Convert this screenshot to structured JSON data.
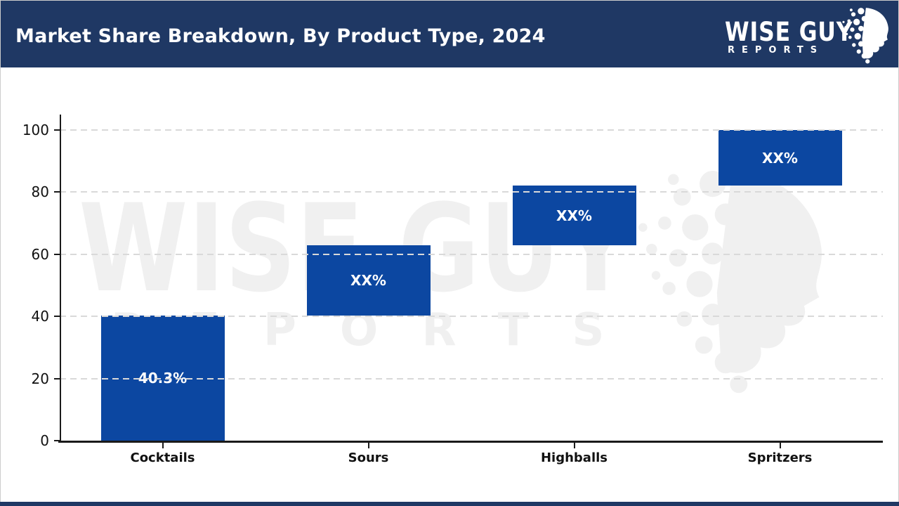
{
  "header": {
    "title": "Market Share Breakdown, By Product Type, 2024",
    "logo": {
      "line1": "WISE GUY",
      "line2": "REPORTS"
    }
  },
  "watermark": {
    "line1": "WISE GUY",
    "line2": "REPORTS"
  },
  "colors": {
    "header_bg": "#1f3864",
    "bar": "#0c47a1",
    "bar_label": "#ffffff",
    "gridline": "#d9d9d9",
    "axis": "#1a1a1a",
    "watermark": "#f0f0f0"
  },
  "chart_data": {
    "type": "bar",
    "subtype": "waterfall",
    "title": "Market Share Breakdown, By Product Type, 2024",
    "xlabel": "",
    "ylabel": "",
    "categories": [
      "Cocktails",
      "Sours",
      "Highballs",
      "Spritzers"
    ],
    "segments": [
      {
        "category": "Cocktails",
        "from": 0,
        "to": 40.3,
        "label": "40.3%"
      },
      {
        "category": "Sours",
        "from": 40.3,
        "to": 62.8,
        "label": "XX%"
      },
      {
        "category": "Highballs",
        "from": 62.8,
        "to": 82.1,
        "label": "XX%"
      },
      {
        "category": "Spritzers",
        "from": 82.1,
        "to": 100,
        "label": "XX%"
      }
    ],
    "ylim": [
      0,
      100
    ],
    "yticks": [
      0,
      20,
      40,
      60,
      80,
      100
    ],
    "grid": "horizontal-dashed",
    "legend": "none",
    "bar_value_labels_inside": true
  }
}
